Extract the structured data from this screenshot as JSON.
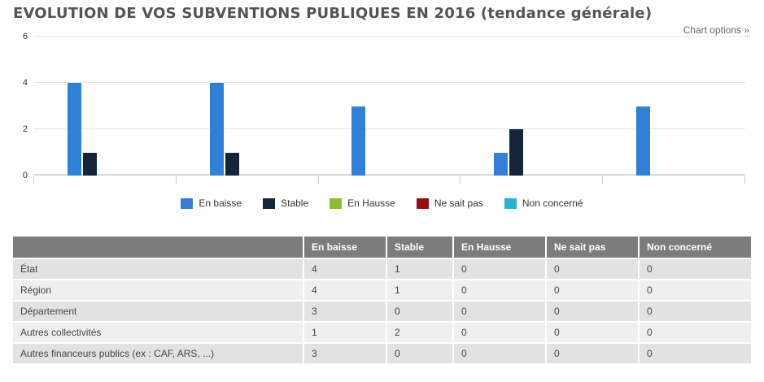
{
  "header": {
    "title": "EVOLUTION DE VOS SUBVENTIONS PUBLIQUES EN 2016 (tendance générale)",
    "chart_options_label": "Chart options »"
  },
  "chart_data": {
    "type": "bar",
    "title": "EVOLUTION DE VOS SUBVENTIONS PUBLIQUES EN 2016 (tendance générale)",
    "categories": [
      "État",
      "Région",
      "Département",
      "Autres collectivités",
      "Autres financeurs publics (ex : CAF, ARS, ...)"
    ],
    "series": [
      {
        "name": "En baisse",
        "color": "#3080d8",
        "values": [
          4,
          4,
          3,
          1,
          3
        ]
      },
      {
        "name": "Stable",
        "color": "#13243b",
        "values": [
          1,
          1,
          0,
          2,
          0
        ]
      },
      {
        "name": "En Hausse",
        "color": "#8cbe2f",
        "values": [
          0,
          0,
          0,
          0,
          0
        ]
      },
      {
        "name": "Ne sait pas",
        "color": "#990f10",
        "values": [
          0,
          0,
          0,
          0,
          0
        ]
      },
      {
        "name": "Non concerné",
        "color": "#28b3d4",
        "values": [
          0,
          0,
          0,
          0,
          0
        ]
      }
    ],
    "ylim": [
      0,
      6
    ],
    "yticks": [
      0,
      2,
      4,
      6
    ],
    "grid": true,
    "legend_position": "bottom",
    "x_axis_labels_visible": false
  },
  "table": {
    "columns": [
      "",
      "En baisse",
      "Stable",
      "En Hausse",
      "Ne sait pas",
      "Non concerné"
    ],
    "rows": [
      {
        "label": "État",
        "values": [
          "4",
          "1",
          "0",
          "0",
          "0"
        ]
      },
      {
        "label": "Région",
        "values": [
          "4",
          "1",
          "0",
          "0",
          "0"
        ]
      },
      {
        "label": "Département",
        "values": [
          "3",
          "0",
          "0",
          "0",
          "0"
        ]
      },
      {
        "label": "Autres collectivités",
        "values": [
          "1",
          "2",
          "0",
          "0",
          "0"
        ]
      },
      {
        "label": "Autres financeurs publics (ex : CAF, ARS, ...)",
        "values": [
          "3",
          "0",
          "0",
          "0",
          "0"
        ]
      }
    ]
  },
  "colors": {
    "table_header_bg": "#7c7c7c",
    "row_odd_bg": "#e2e2e2",
    "row_even_bg": "#efefef",
    "gridline": "#e7e7e7",
    "axis_baseline": "#d6d6d6",
    "axis_tick": "#bacee4",
    "title_text": "#545454",
    "link_text": "#666666"
  }
}
